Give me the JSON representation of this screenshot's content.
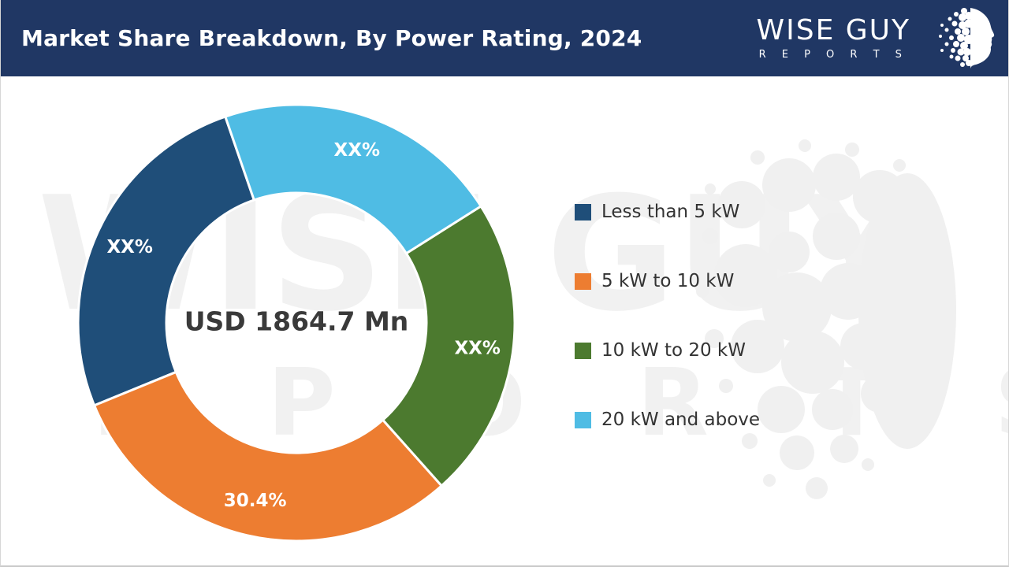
{
  "header": {
    "title": "Market Share Breakdown, By Power Rating, 2024",
    "logo": {
      "line1": "WISE GUY",
      "line2": "R E P O R T S"
    }
  },
  "watermark": {
    "line1": "WISE GUY",
    "line2": "R E P O R T S"
  },
  "colors": {
    "header_bg": "#203764",
    "center_text": "#3a3a3a",
    "legend_text": "#333333",
    "watermark": "#f1f1f1",
    "segment_separator": "#ffffff"
  },
  "chart_data": {
    "type": "pie",
    "subtype": "donut",
    "title": "Market Share Breakdown, By Power Rating, 2024",
    "center_label": "USD 1864.7 Mn",
    "legend_position": "right",
    "start_angle_deg": -19,
    "direction": "counterclockwise",
    "inner_radius_ratio": 0.595,
    "segments": [
      {
        "label": "Less than 5 kW",
        "value_pct": 25.9,
        "display_label": "XX%",
        "color": "#1f4e79"
      },
      {
        "label": "5 kW to 10 kW",
        "value_pct": 30.4,
        "display_label": "30.4%",
        "color": "#ed7d31"
      },
      {
        "label": "10 kW to 20 kW",
        "value_pct": 22.4,
        "display_label": "XX%",
        "color": "#4c7a2f"
      },
      {
        "label": "20 kW and above",
        "value_pct": 21.3,
        "display_label": "XX%",
        "color": "#4fbce4"
      }
    ]
  }
}
